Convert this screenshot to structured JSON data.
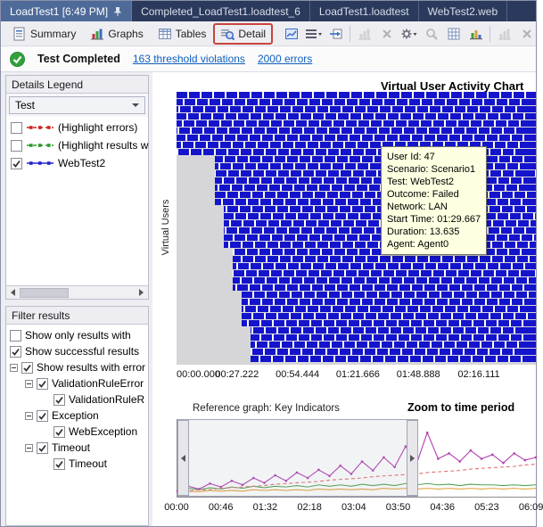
{
  "tabbar": {
    "active_tab": {
      "label": "LoadTest1 [6:49 PM]"
    },
    "tabs": [
      "Completed_LoadTest1.loadtest_6",
      "LoadTest1.loadtest",
      "WebTest2.web"
    ]
  },
  "toolbar": {
    "buttons": [
      {
        "label": "Summary",
        "icon": "summary-icon",
        "highlighted": false
      },
      {
        "label": "Graphs",
        "icon": "graphs-icon",
        "highlighted": false
      },
      {
        "label": "Tables",
        "icon": "tables-icon",
        "highlighted": false
      },
      {
        "label": "Detail",
        "icon": "detail-icon",
        "highlighted": true
      }
    ],
    "icons": [
      {
        "name": "floating-graph-icon",
        "icon": "chart-blue",
        "disabled": false
      },
      {
        "name": "graph-layout-dropdown-icon",
        "icon": "rows-dropdown",
        "disabled": false
      },
      {
        "name": "move-graph-icon",
        "icon": "arrow-box",
        "disabled": false
      },
      {
        "separator": true
      },
      {
        "name": "export-graph-icon",
        "icon": "chart-gray",
        "disabled": true
      },
      {
        "name": "delete-graph-icon",
        "icon": "x-mark",
        "disabled": true
      },
      {
        "name": "graph-options-gear-icon",
        "icon": "gear-dropdown",
        "disabled": false
      },
      {
        "name": "zoom-graph-icon",
        "icon": "magnifier",
        "disabled": true
      },
      {
        "name": "show-legend-grid-icon",
        "icon": "grid",
        "disabled": false
      },
      {
        "name": "excel-report-icon",
        "icon": "chart-green",
        "disabled": false
      },
      {
        "separator": true
      },
      {
        "name": "add-analysis-icon",
        "icon": "chart-gray",
        "disabled": true
      },
      {
        "name": "remove-analysis-icon",
        "icon": "x-mark",
        "disabled": true
      }
    ]
  },
  "status": {
    "label": "Test Completed",
    "links": [
      "163 threshold violations",
      "2000 errors"
    ]
  },
  "details_legend": {
    "title": "Details Legend",
    "combo_value": "Test",
    "items": [
      {
        "checked": false,
        "color": "#CC2222",
        "dashed": true,
        "label": "(Highlight errors)"
      },
      {
        "checked": false,
        "color": "#2A9A2A",
        "dashed": true,
        "label": "(Highlight results w"
      },
      {
        "checked": true,
        "color": "#2222CC",
        "dashed": false,
        "label": "WebTest2"
      }
    ]
  },
  "filter_results": {
    "title": "Filter results",
    "tree": [
      {
        "label": "Show only results with",
        "checked": false,
        "level": 0,
        "expander": false
      },
      {
        "label": "Show successful results",
        "checked": true,
        "level": 0,
        "expander": false
      },
      {
        "label": "Show results with error",
        "checked": true,
        "level": 0,
        "expander": true
      },
      {
        "label": "ValidationRuleError",
        "checked": true,
        "level": 1,
        "expander": true
      },
      {
        "label": "ValidationRuleR",
        "checked": true,
        "level": 2,
        "expander": false
      },
      {
        "label": "Exception",
        "checked": true,
        "level": 1,
        "expander": true
      },
      {
        "label": "WebException",
        "checked": true,
        "level": 2,
        "expander": false
      },
      {
        "label": "Timeout",
        "checked": true,
        "level": 1,
        "expander": true
      },
      {
        "label": "Timeout",
        "checked": true,
        "level": 2,
        "expander": false
      }
    ]
  },
  "chart_data": [
    {
      "type": "gantt",
      "title": "Virtual User Activity Chart",
      "ylabel": "Virtual Users",
      "x_ticks": [
        "00:00.000",
        "00:27.222",
        "00:54.444",
        "01:21.666",
        "01:48.888",
        "02:16.111"
      ],
      "bar_color": "#1414CC",
      "bar_groups": [
        {
          "rows": 9,
          "start_frac": 0
        },
        {
          "rows": 7,
          "start_frac": 0.107
        },
        {
          "rows": 6,
          "start_frac": 0.132
        },
        {
          "rows": 6,
          "start_frac": 0.156
        },
        {
          "rows": 5,
          "start_frac": 0.181
        },
        {
          "rows": 5,
          "start_frac": 0.206
        }
      ],
      "tooltip": [
        "User Id: 47",
        "Scenario: Scenario1",
        "Test: WebTest2",
        "Outcome: Failed",
        "Network: LAN",
        "Start Time: 01:29.667",
        "Duration: 13.635",
        "Agent: Agent0"
      ]
    },
    {
      "type": "line",
      "title": "Reference graph: Key Indicators",
      "zoom_label": "Zoom to time period",
      "x_ticks": [
        "00:00",
        "00:46",
        "01:32",
        "02:18",
        "03:04",
        "03:50",
        "04:36",
        "05:23",
        "06:09"
      ],
      "zoom_selection": {
        "start_frac": 0,
        "end_frac": 0.672
      },
      "series": [
        {
          "name": "indicator-green",
          "color": "#4FA34F",
          "dashed": false,
          "values": [
            0.05,
            0.07,
            0.05,
            0.08,
            0.06,
            0.09,
            0.07,
            0.1,
            0.08,
            0.1,
            0.09,
            0.11,
            0.09,
            0.12,
            0.1,
            0.12,
            0.1,
            0.13,
            0.11,
            0.13,
            0.11,
            0.14,
            0.12,
            0.14,
            0.12,
            0.13,
            0.11,
            0.13,
            0.12,
            0.12,
            0.11,
            0.12,
            0.11,
            0.12
          ]
        },
        {
          "name": "indicator-orange",
          "color": "#E2A23C",
          "dashed": false,
          "values": [
            0.02,
            0.03,
            0.02,
            0.04,
            0.03,
            0.04,
            0.03,
            0.05,
            0.04,
            0.05,
            0.04,
            0.05,
            0.04,
            0.06,
            0.05,
            0.06,
            0.05,
            0.06,
            0.05,
            0.07,
            0.06,
            0.07,
            0.06,
            0.07,
            0.06,
            0.07,
            0.06,
            0.07,
            0.06,
            0.07,
            0.06,
            0.07,
            0.06,
            0.07
          ]
        },
        {
          "name": "indicator-red-dashed",
          "color": "#E07070",
          "dashed": true,
          "values": [
            0.02,
            0.03,
            0.05,
            0.05,
            0.07,
            0.08,
            0.09,
            0.1,
            0.11,
            0.13,
            0.14,
            0.15,
            0.16,
            0.17,
            0.19,
            0.2,
            0.21,
            0.22,
            0.24,
            0.25,
            0.26,
            0.27,
            0.28,
            0.3,
            0.31,
            0.32,
            0.33,
            0.35,
            0.36,
            0.37,
            0.38,
            0.39,
            0.41,
            0.42
          ]
        },
        {
          "name": "indicator-magenta",
          "color": "#B03FB0",
          "dashed": false,
          "values": [
            0.03,
            0.1,
            0.06,
            0.14,
            0.09,
            0.18,
            0.12,
            0.22,
            0.15,
            0.26,
            0.18,
            0.3,
            0.22,
            0.34,
            0.25,
            0.4,
            0.28,
            0.46,
            0.33,
            0.52,
            0.38,
            0.68,
            0.42,
            0.88,
            0.5,
            0.58,
            0.46,
            0.62,
            0.5,
            0.56,
            0.44,
            0.58,
            0.48,
            0.52
          ]
        }
      ]
    }
  ]
}
